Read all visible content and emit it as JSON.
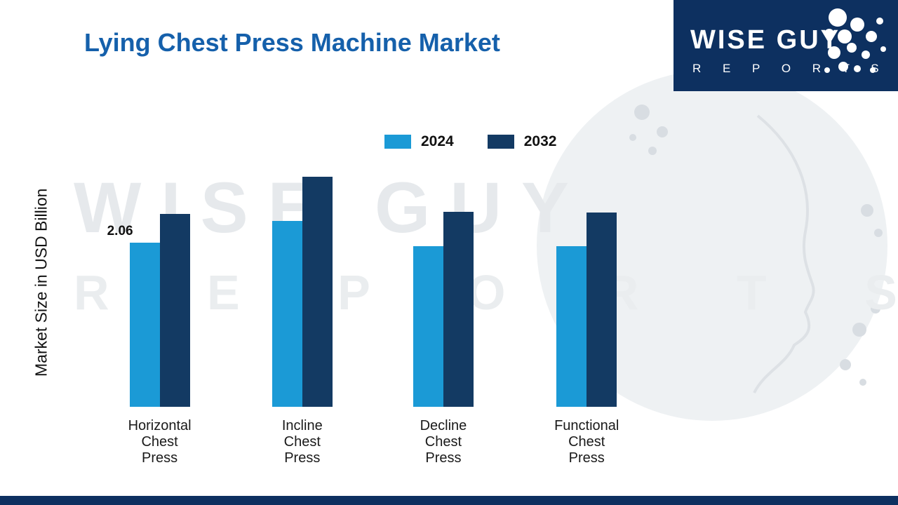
{
  "page": {
    "title": "Lying Chest Press Machine Market"
  },
  "logo": {
    "line1": "WISE GUY",
    "line2": "R E P O R T S"
  },
  "watermark": {
    "line1": "WISE GUY",
    "line2": "R E P O R T S"
  },
  "colors": {
    "title_blue": "#1560ab",
    "navy": "#0d3060",
    "series_2024": "#1b9ad6",
    "series_2032": "#133a63",
    "circle_gray": "#eef1f3"
  },
  "chart_data": {
    "type": "bar",
    "title": "Lying Chest Press Machine Market",
    "xlabel": "",
    "ylabel": "Market Size in USD Billion",
    "categories": [
      "Horizontal Chest Press",
      "Incline Chest Press",
      "Decline Chest Press",
      "Functional Chest Press"
    ],
    "series": [
      {
        "name": "2024",
        "color": "#1b9ad6",
        "values": [
          2.06,
          2.33,
          2.02,
          2.02
        ]
      },
      {
        "name": "2032",
        "color": "#133a63",
        "values": [
          2.42,
          2.89,
          2.45,
          2.44
        ]
      }
    ],
    "annotations": [
      {
        "category": 0,
        "series": 0,
        "text": "2.06"
      }
    ],
    "ylim": [
      0,
      3.1
    ],
    "grid": false,
    "legend_position": "top"
  }
}
